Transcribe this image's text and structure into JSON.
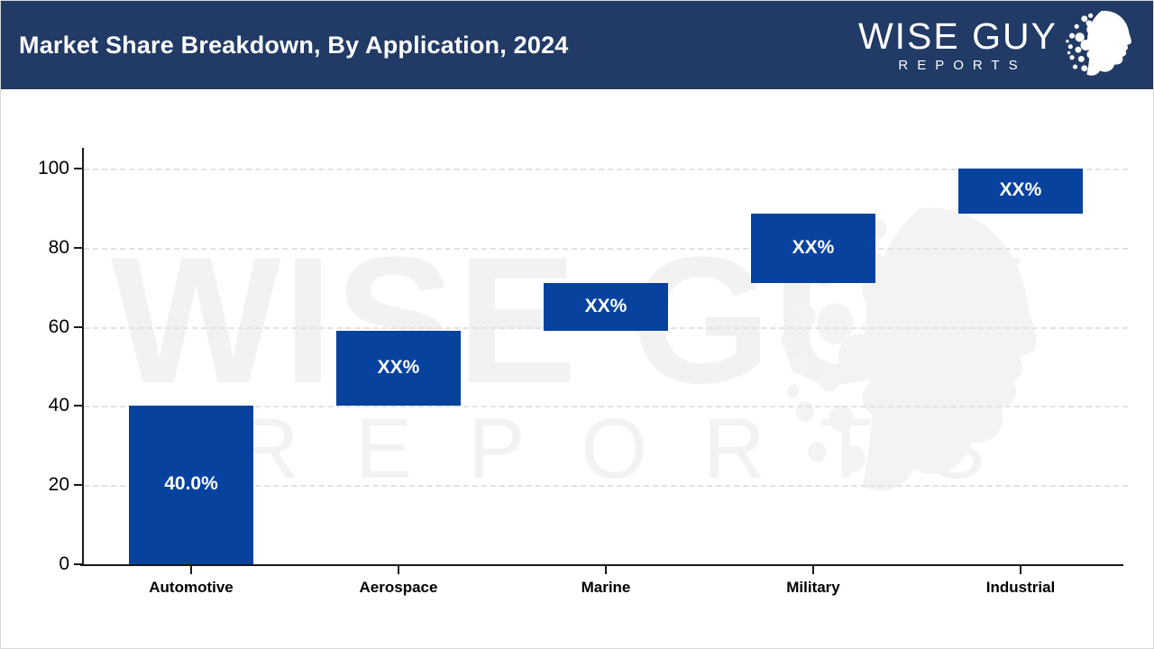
{
  "header": {
    "title": "Market Share Breakdown, By Application, 2024",
    "logo": {
      "line1": "WISE GUY",
      "line2": "REPORTS"
    }
  },
  "watermark": {
    "line1": "WISE GUY",
    "line2": "REPORTS"
  },
  "chart_data": {
    "type": "bar",
    "subtype": "waterfall",
    "title": "Market Share Breakdown, By Application, 2024",
    "categories": [
      "Automotive",
      "Aerospace",
      "Marine",
      "Military",
      "Industrial"
    ],
    "segments": [
      {
        "category": "Automotive",
        "start": 0,
        "end": 40,
        "label": "40.0%"
      },
      {
        "category": "Aerospace",
        "start": 40,
        "end": 59,
        "label": "XX%"
      },
      {
        "category": "Marine",
        "start": 59,
        "end": 71,
        "label": "XX%"
      },
      {
        "category": "Military",
        "start": 71,
        "end": 88.5,
        "label": "XX%"
      },
      {
        "category": "Industrial",
        "start": 88.5,
        "end": 100,
        "label": "XX%"
      }
    ],
    "xlabel": "",
    "ylabel": "",
    "yticks": [
      0,
      20,
      40,
      60,
      80,
      100
    ],
    "ylim": [
      0,
      105
    ],
    "grid": "horizontal-dashed",
    "legend": "none",
    "bar_color": "#07429e",
    "bar_label_color": "#ffffff"
  },
  "colors": {
    "header_bg": "#213a66",
    "title_text": "#ffffff",
    "bar_fill": "#07429e",
    "axis": "#1a1a1a",
    "gridline": "#e2e2e2",
    "watermark": "#f2f2f2",
    "page_border": "#d9d9d9"
  }
}
